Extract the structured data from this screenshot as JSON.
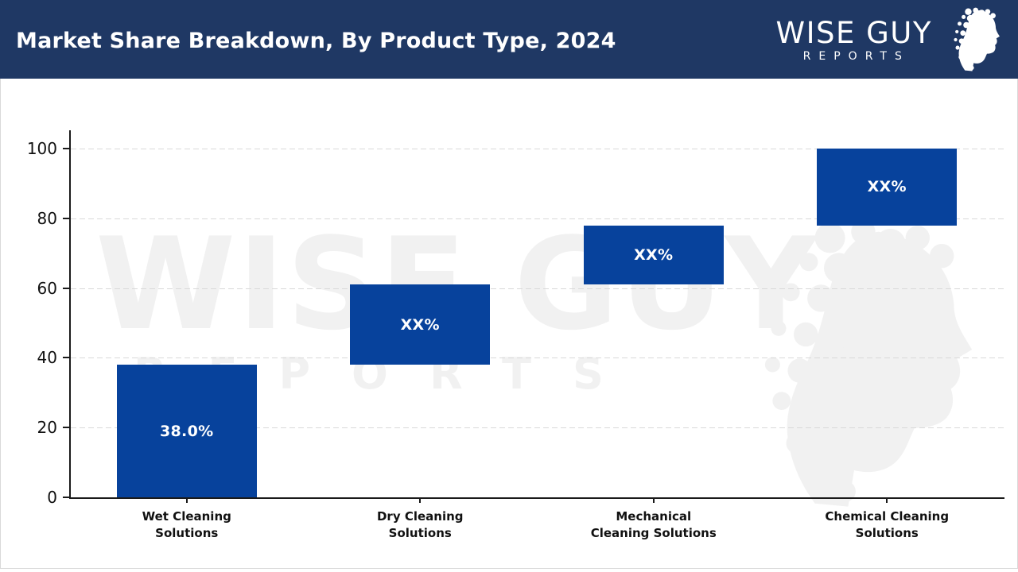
{
  "header": {
    "title": "Market Share Breakdown, By Product Type, 2024",
    "brand": {
      "name": "WISE GUY",
      "sub": "REPORTS"
    }
  },
  "watermark": {
    "big": "WISE GUY",
    "sub": "REPORTS"
  },
  "colors": {
    "header_bg": "#1f3864",
    "bar_fill": "#07429c",
    "bar_label": "#ffffff",
    "axis": "#1a1a1a",
    "tick_label": "#111111",
    "gridline": "#d9d9d9",
    "watermark": "#f1f1f1"
  },
  "chart_data": {
    "type": "bar",
    "subtype": "waterfall",
    "title": "Market Share Breakdown, By Product Type, 2024",
    "categories": [
      [
        "Wet Cleaning",
        "Solutions"
      ],
      [
        "Dry Cleaning",
        "Solutions"
      ],
      [
        "Mechanical",
        "Cleaning Solutions"
      ],
      [
        "Chemical Cleaning",
        "Solutions"
      ]
    ],
    "segments": [
      {
        "category": "Wet Cleaning Solutions",
        "label": "38.0%",
        "start": 0,
        "end": 38
      },
      {
        "category": "Dry Cleaning Solutions",
        "label": "XX%",
        "start": 38,
        "end": 61
      },
      {
        "category": "Mechanical Cleaning Solutions",
        "label": "XX%",
        "start": 61,
        "end": 78
      },
      {
        "category": "Chemical Cleaning Solutions",
        "label": "XX%",
        "start": 78,
        "end": 100
      }
    ],
    "xlabel": "",
    "ylabel": "",
    "ylim": [
      0,
      100
    ],
    "yticks": [
      0,
      20,
      40,
      60,
      80,
      100
    ],
    "grid": "horizontal-dashed",
    "legend": "none",
    "bar_color": "#07429c"
  }
}
